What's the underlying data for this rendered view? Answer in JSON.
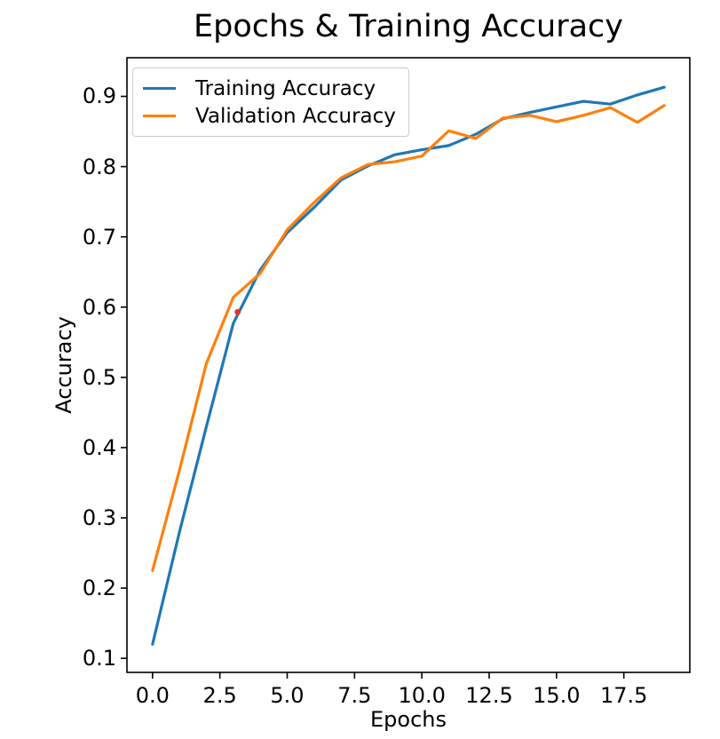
{
  "chart_data": {
    "type": "line",
    "title": "Epochs & Training Accuracy",
    "xlabel": "Epochs",
    "ylabel": "Accuracy",
    "x": [
      0,
      1,
      2,
      3,
      4,
      5,
      6,
      7,
      8,
      9,
      10,
      11,
      12,
      13,
      14,
      15,
      16,
      17,
      18,
      19
    ],
    "series": [
      {
        "name": "Training Accuracy",
        "color": "#1f77b4",
        "values": [
          0.12,
          0.28,
          0.43,
          0.577,
          0.653,
          0.706,
          0.742,
          0.781,
          0.801,
          0.817,
          0.824,
          0.83,
          0.846,
          0.868,
          0.877,
          0.885,
          0.893,
          0.889,
          0.902,
          0.913
        ]
      },
      {
        "name": "Validation Accuracy",
        "color": "#ff7f0e",
        "values": [
          0.225,
          0.368,
          0.52,
          0.614,
          0.648,
          0.71,
          0.749,
          0.784,
          0.803,
          0.807,
          0.815,
          0.851,
          0.84,
          0.869,
          0.873,
          0.864,
          0.873,
          0.884,
          0.863,
          0.887
        ]
      }
    ],
    "highlight_point": {
      "x": 3.16,
      "y": 0.593,
      "color": "#e8342c"
    },
    "x_tick_values": [
      0,
      2.5,
      5,
      7.5,
      10,
      12.5,
      15,
      17.5
    ],
    "x_tick_labels": [
      "0.0",
      "2.5",
      "5.0",
      "7.5",
      "10.0",
      "12.5",
      "15.0",
      "17.5"
    ],
    "y_tick_values": [
      0.1,
      0.2,
      0.3,
      0.4,
      0.5,
      0.6,
      0.7,
      0.8,
      0.9
    ],
    "y_tick_labels": [
      "0.1",
      "0.2",
      "0.3",
      "0.4",
      "0.5",
      "0.6",
      "0.7",
      "0.8",
      "0.9"
    ],
    "xlim": [
      -0.95,
      19.95
    ],
    "ylim": [
      0.08,
      0.955
    ],
    "grid": false,
    "legend": {
      "position": "upper left"
    },
    "axis_color": "#000000"
  }
}
